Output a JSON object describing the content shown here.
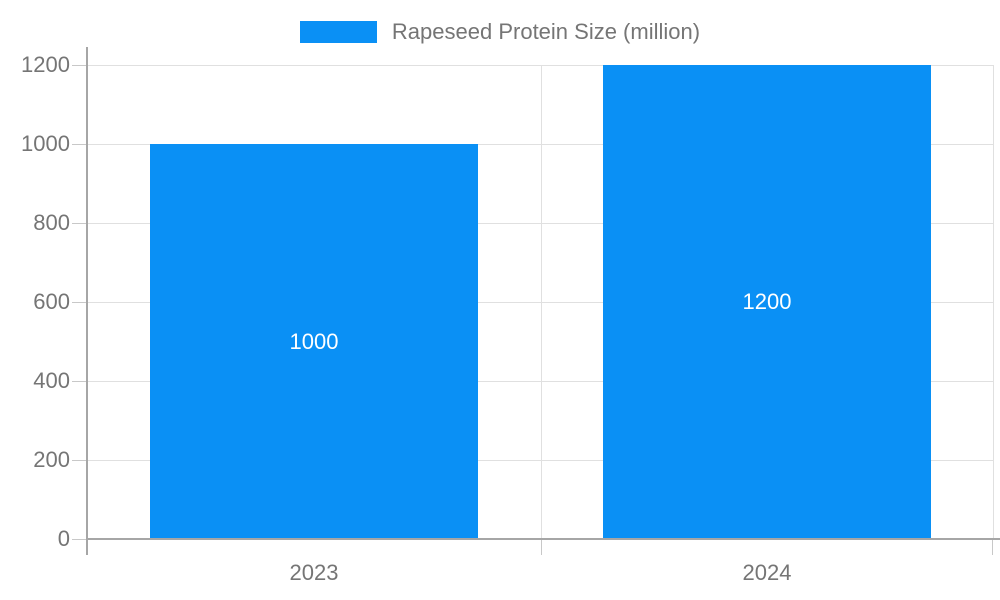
{
  "chart_data": {
    "type": "bar",
    "title": "",
    "categories": [
      "2023",
      "2024"
    ],
    "series": [
      {
        "name": "Rapeseed Protein Size (million)",
        "values": [
          1000,
          1200
        ]
      }
    ],
    "bar_value_labels": [
      "1000",
      "1200"
    ],
    "ylim": [
      0,
      1200
    ],
    "yticks": [
      0,
      200,
      400,
      600,
      800,
      1000,
      1200
    ],
    "ytick_labels": [
      "0",
      "200",
      "400",
      "600",
      "800",
      "1000",
      "1200"
    ],
    "grid": true,
    "legend_position": "top",
    "colors": {
      "bar": "#0a90f5",
      "bar_label": "#ffffff",
      "axis_text": "#757575",
      "gridline": "#e0e0e0",
      "tick": "#c8c8c8",
      "axis_line": "#a6a6a6",
      "background": "#ffffff"
    }
  }
}
